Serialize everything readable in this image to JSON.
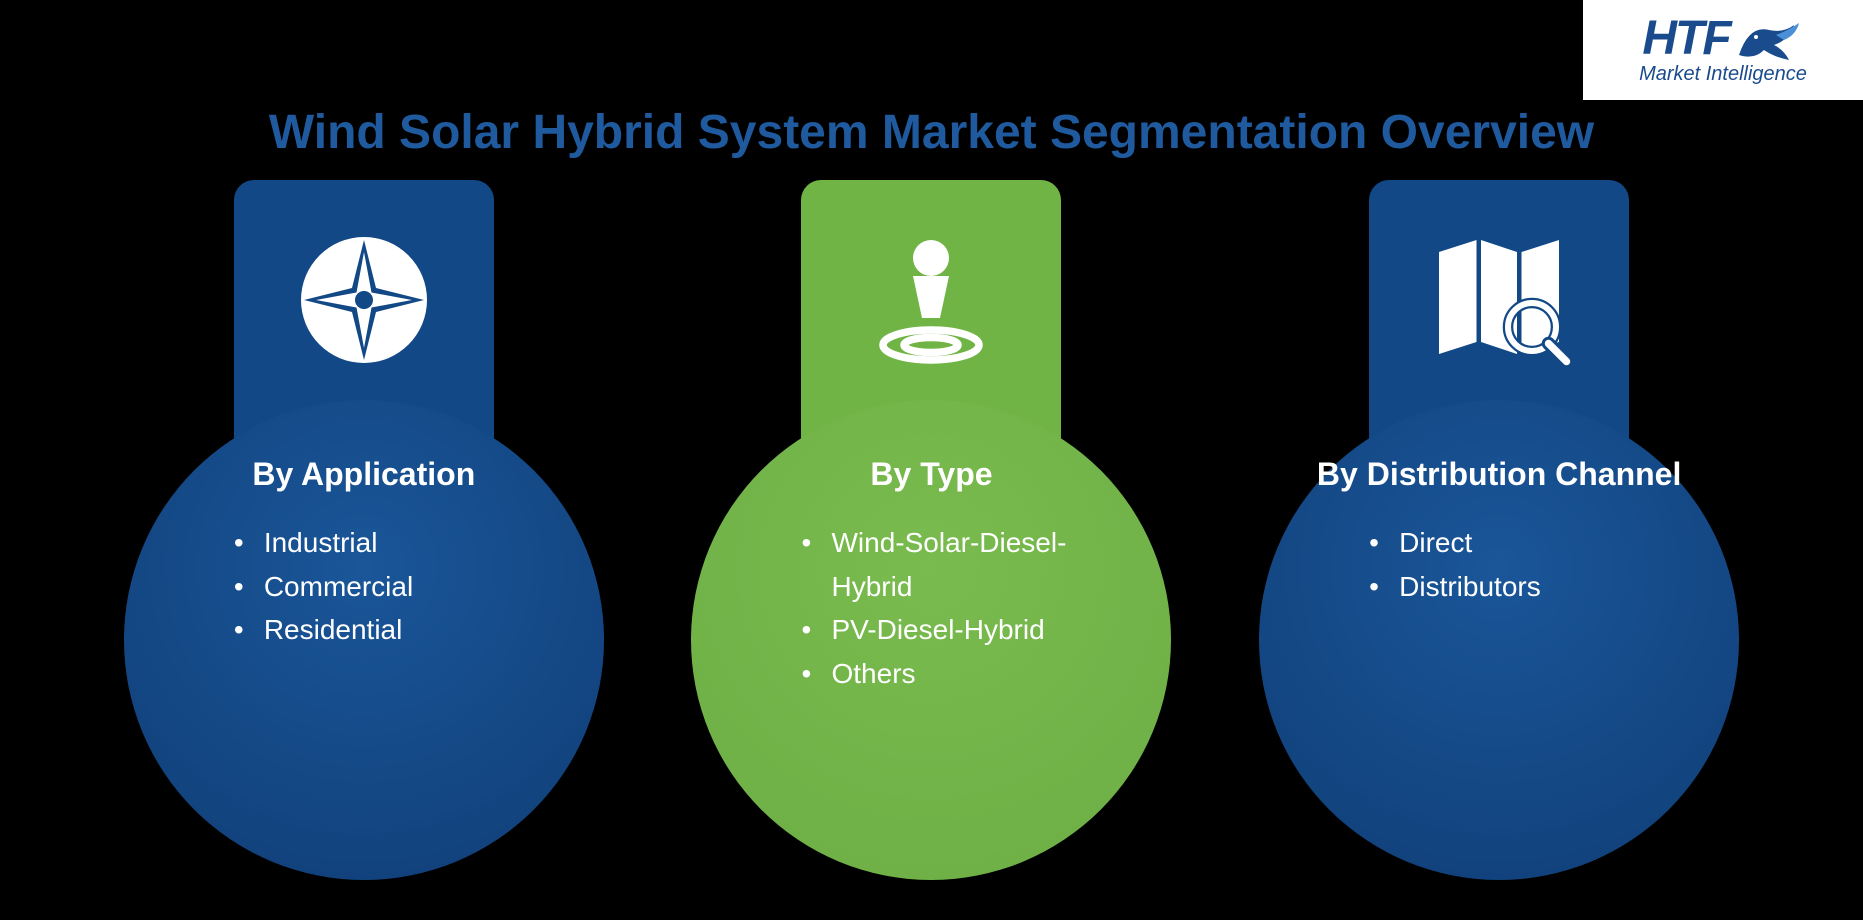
{
  "title": "Wind Solar Hybrid System Market Segmentation Overview",
  "title_color": "#1f5a9e",
  "title_fontsize": 48,
  "background_color": "#000000",
  "logo": {
    "main": "HTF",
    "sub": "Market Intelligence",
    "bg": "#ffffff",
    "color": "#1a4b8c"
  },
  "segments": [
    {
      "id": "application",
      "title": "By Application",
      "items": [
        "Industrial",
        "Commercial",
        "Residential"
      ],
      "neck_color": "#124885",
      "circle_color_top": "#1a5699",
      "circle_color_bottom": "#0f3d75",
      "icon": "compass"
    },
    {
      "id": "type",
      "title": "By Type",
      "items": [
        "Wind-Solar-Diesel-Hybrid",
        "PV-Diesel-Hybrid",
        "Others"
      ],
      "neck_color": "#6fb444",
      "circle_color_top": "#79bb4e",
      "circle_color_bottom": "#6dae45",
      "icon": "location-pin"
    },
    {
      "id": "distribution",
      "title": "By Distribution Channel",
      "items": [
        "Direct",
        "Distributors"
      ],
      "neck_color": "#124885",
      "circle_color_top": "#1a5699",
      "circle_color_bottom": "#0f3d75",
      "icon": "map-search"
    }
  ],
  "text_color": "#ffffff",
  "seg_title_fontsize": 32,
  "item_fontsize": 28
}
